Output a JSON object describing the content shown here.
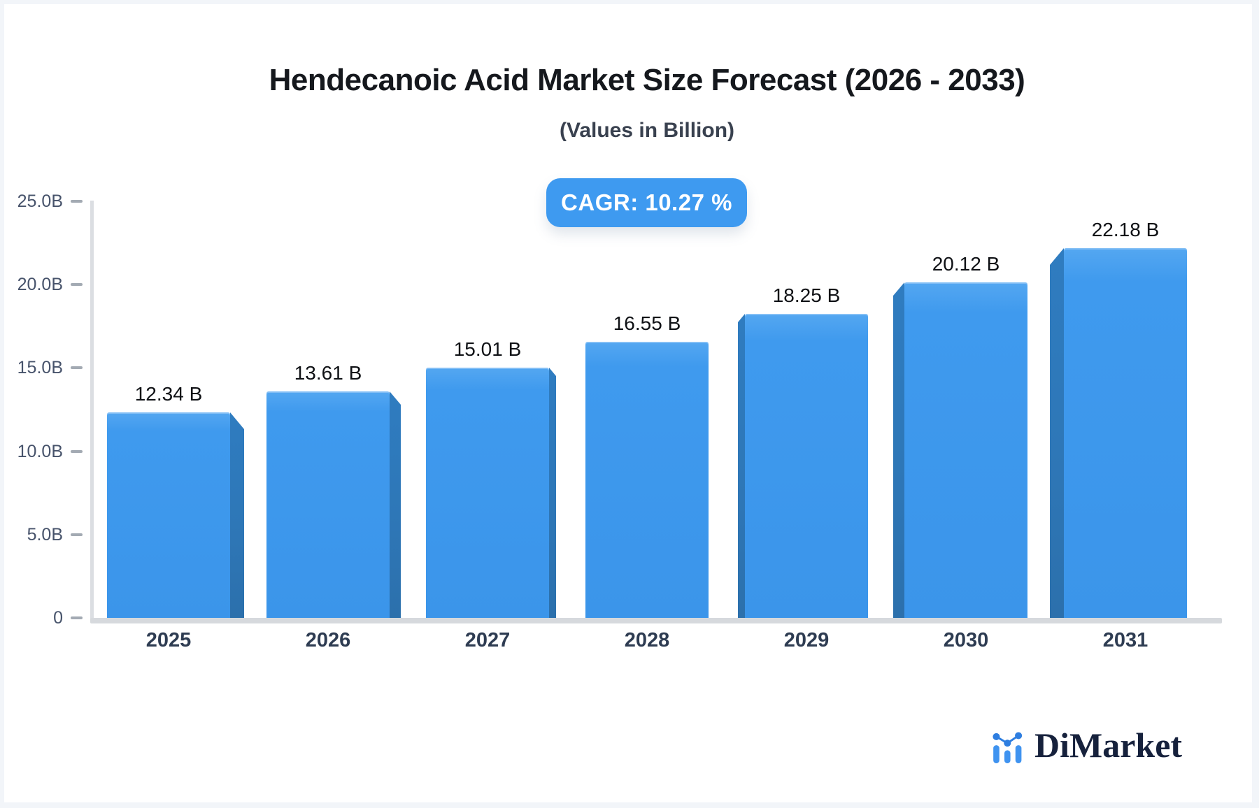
{
  "chart_data": {
    "type": "bar",
    "title": "Hendecanoic Acid Market Size Forecast (2026 - 2033)",
    "subtitle": "(Values in Billion)",
    "cagr_annotation": "CAGR: 10.27 %",
    "unit": "Billion",
    "categories": [
      "2025",
      "2026",
      "2027",
      "2028",
      "2029",
      "2030",
      "2031"
    ],
    "values": [
      12.34,
      13.61,
      15.01,
      16.55,
      18.25,
      20.12,
      22.18
    ],
    "value_labels": [
      "12.34 B",
      "13.61 B",
      "15.01 B",
      "16.55 B",
      "18.25 B",
      "20.12 B",
      "22.18 B"
    ],
    "ylim": [
      0,
      25
    ],
    "yticks": [
      {
        "label": "25.0B",
        "value": 25
      },
      {
        "label": "20.0B",
        "value": 20
      },
      {
        "label": "15.0B",
        "value": 15
      },
      {
        "label": "10.0B",
        "value": 10
      },
      {
        "label": "5.0B",
        "value": 5
      },
      {
        "label": "0",
        "value": 0
      }
    ],
    "grid": false,
    "legend": null,
    "bar_style": "3d-perspective-center-vanishing"
  },
  "brand": {
    "name": "DiMarket",
    "icon": "mini-bar-line-chart-icon"
  },
  "colors": {
    "accent": "#3E9AF0",
    "bar_face": "#3F9AEE",
    "bar_side": "#2E77B7",
    "floor": "#D6D9DD",
    "axis_line": "#DBDEE2",
    "tick": "#A3AAB3",
    "ytick_text": "#47536B",
    "xtick_text": "#2E3C52",
    "value_text": "#0F1115",
    "title_text": "#15181D",
    "subtitle_text": "#39414F",
    "brand_text": "#16213C",
    "brand_icon": "#3F93F0",
    "page_edge": "#F2F5F9"
  }
}
